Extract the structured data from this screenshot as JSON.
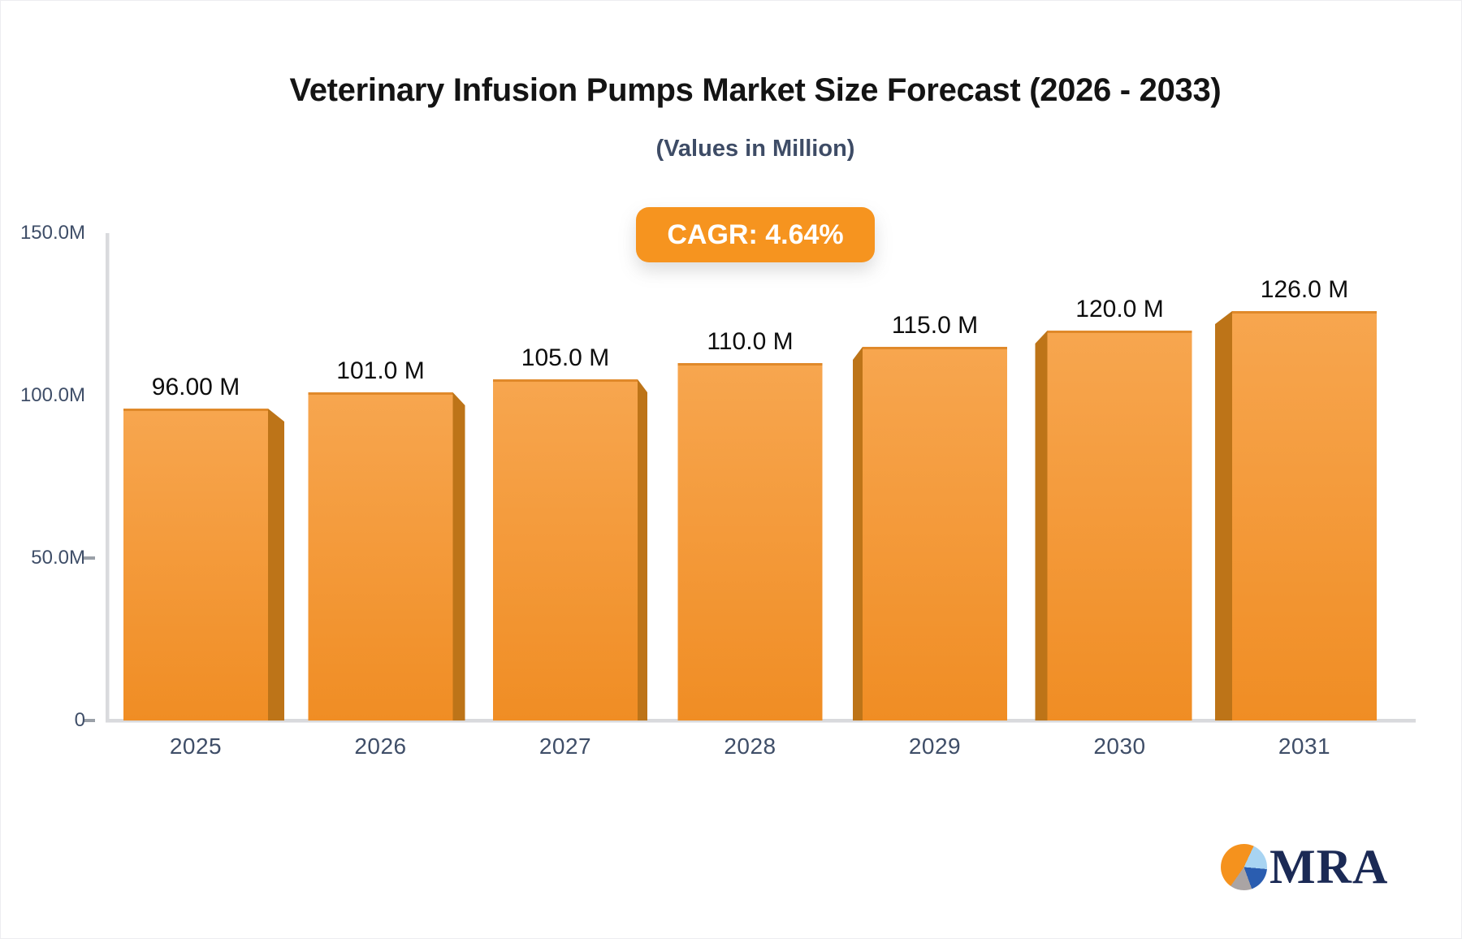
{
  "header": {
    "title": "Veterinary Infusion Pumps Market Size Forecast (2026 - 2033)",
    "subtitle": "(Values in Million)",
    "cagr_label": "CAGR: 4.64%"
  },
  "chart_data": {
    "type": "bar",
    "title": "Veterinary Infusion Pumps Market Size Forecast (2026 - 2033)",
    "subtitle": "(Values in Million)",
    "categories": [
      "2025",
      "2026",
      "2027",
      "2028",
      "2029",
      "2030",
      "2031"
    ],
    "values": [
      96,
      101,
      105,
      110,
      115,
      120,
      126
    ],
    "value_labels": [
      "96.00 M",
      "101.0 M",
      "105.0 M",
      "110.0 M",
      "115.0 M",
      "120.0 M",
      "126.0 M"
    ],
    "xlabel": "",
    "ylabel": "",
    "ylim": [
      0,
      150
    ],
    "y_ticks": [
      {
        "value": 150,
        "label": "150.0M",
        "dash": false
      },
      {
        "value": 100,
        "label": "100.0M",
        "dash": false
      },
      {
        "value": 50,
        "label": "50.0M",
        "dash": true
      },
      {
        "value": 0,
        "label": "0",
        "dash": true
      }
    ],
    "grid": false,
    "legend": "none",
    "bar_style": "3d-perspective-orange"
  },
  "logo": {
    "text": "MRA",
    "icon": "pie-chart-icon"
  },
  "colors": {
    "title": "#141414",
    "subtitle": "#3e4c66",
    "badge_bg": "#f6941f",
    "badge_text": "#ffffff",
    "bar_top": "#f7a64f",
    "bar_bottom": "#f08d24",
    "bar_side": "#bd7418",
    "bar_top_edge": "#e0892a",
    "axis": "#d9dadd",
    "tick": "#9aa0a8",
    "axis_label": "#3f4e68",
    "value_label": "#0d0d0d",
    "logo_navy": "#1b2a55",
    "pie_orange": "#f5921d",
    "pie_light_blue": "#a8d4f2",
    "pie_blue": "#2a5db0",
    "pie_gray": "#aaa4a4"
  }
}
